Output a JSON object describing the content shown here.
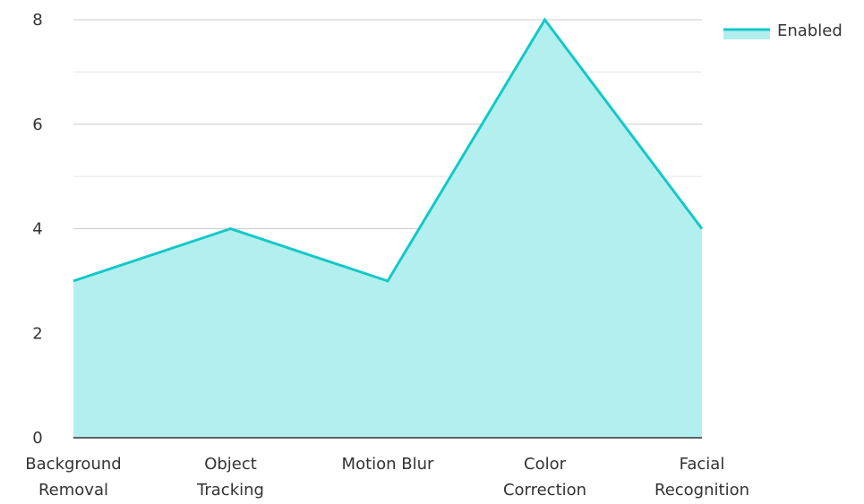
{
  "chart_data": {
    "type": "area",
    "categories": [
      [
        "Background",
        "Removal"
      ],
      [
        "Object",
        "Tracking"
      ],
      [
        "Motion Blur"
      ],
      [
        "Color",
        "Correction"
      ],
      [
        "Facial",
        "Recognition"
      ]
    ],
    "series": [
      {
        "name": "Enabled",
        "values": [
          3,
          4,
          3,
          8,
          4
        ]
      }
    ],
    "ylim": [
      0,
      8
    ],
    "yticks": [
      0,
      2,
      4,
      6,
      8
    ],
    "minor_gridlines": true,
    "legend_position": "top-right",
    "colors": {
      "line": "#14c8c8",
      "fill": "#b2efee",
      "grid": "#cccccc",
      "grid_minor": "#e6e6e6",
      "axis": "#333333"
    }
  }
}
